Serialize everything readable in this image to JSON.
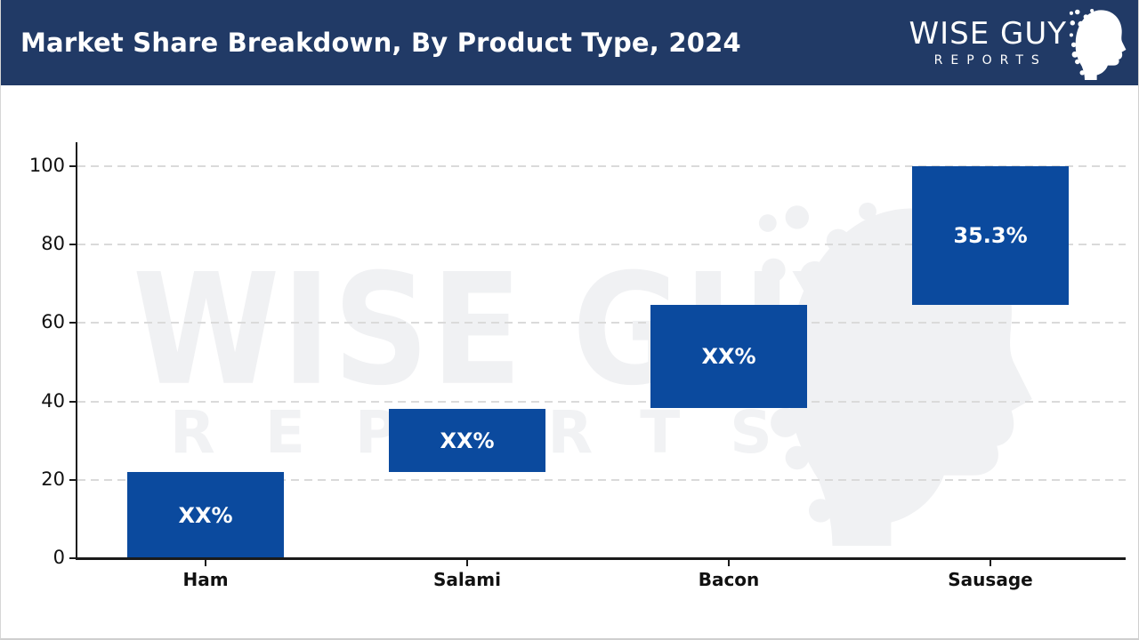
{
  "header": {
    "title": "Market Share Breakdown, By Product Type, 2024",
    "logo": {
      "name": "WISE GUY",
      "subtitle": "REPORTS"
    }
  },
  "watermark": {
    "name": "WISE GUY",
    "subtitle": "REPORTS"
  },
  "chart_data": {
    "type": "bar",
    "subtype": "floating-waterfall",
    "title": "Market Share Breakdown, By Product Type, 2024",
    "categories": [
      "Ham",
      "Salami",
      "Bacon",
      "Sausage"
    ],
    "segments": [
      {
        "category": "Ham",
        "start": 0,
        "end": 22,
        "label": "XX%"
      },
      {
        "category": "Salami",
        "start": 22,
        "end": 38,
        "label": "XX%"
      },
      {
        "category": "Bacon",
        "start": 38.3,
        "end": 64.7,
        "label": "XX%"
      },
      {
        "category": "Sausage",
        "start": 64.7,
        "end": 100,
        "label": "35.3%"
      }
    ],
    "ylim": [
      0,
      100
    ],
    "yticks": [
      0,
      20,
      40,
      60,
      80,
      100
    ],
    "grid": "horizontal-dashed",
    "legend": "none",
    "bar_color": "#0b4a9e"
  },
  "colors": {
    "header_bg": "#213a66",
    "bar": "#0b4a9e",
    "grid": "#dadada",
    "axis": "#1a1a1a",
    "bar_label_text": "#ffffff",
    "watermark": "#f0f1f3",
    "page_border": "#cfcfcf"
  }
}
